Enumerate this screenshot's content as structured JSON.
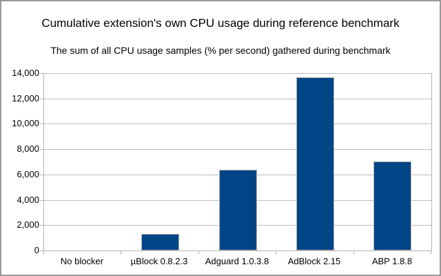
{
  "page": {
    "background_color": "#ffffff",
    "frame_border_color": "#999999"
  },
  "chart_data": {
    "type": "bar",
    "title": "Cumulative extension's own CPU usage during reference benchmark",
    "subtitle": "The sum of all CPU usage samples (% per second) gathered during benchmark",
    "categories": [
      "No blocker",
      "µBlock 0.8.2.3",
      "Adguard 1.0.3.8",
      "AdBlock 2.15",
      "ABP 1.8.8"
    ],
    "values": [
      0,
      1300,
      6400,
      13650,
      7050
    ],
    "xlabel": "",
    "ylabel": "",
    "ylim": [
      0,
      14000
    ],
    "ytick_step": 2000,
    "ytick_labels": [
      "0",
      "2,000",
      "4,000",
      "6,000",
      "8,000",
      "10,000",
      "12,000",
      "14,000"
    ],
    "grid": true,
    "legend": "none",
    "colors": {
      "bar_fill": "#004586",
      "bar_border": "#b3b3b3",
      "gridline": "#bebebe",
      "axis": "#b3b3b3",
      "text": "#000000"
    }
  }
}
